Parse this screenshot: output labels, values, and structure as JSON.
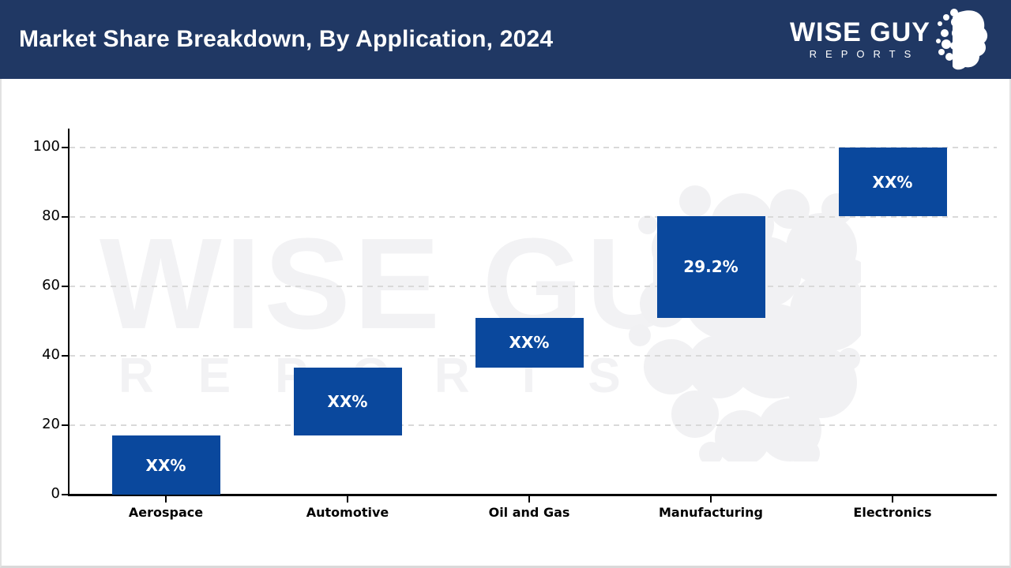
{
  "header": {
    "title": "Market Share Breakdown, By Application, 2024",
    "bg_color": "#203864",
    "logo_line1": "WISE GUY",
    "logo_line2": "REPORTS"
  },
  "watermark": {
    "line1": "WISE GUY",
    "line2": "REPORTS"
  },
  "chart_data": {
    "type": "bar",
    "subtype": "waterfall",
    "title": "Market Share Breakdown, By Application, 2024",
    "categories": [
      "Aerospace",
      "Automotive",
      "Oil and Gas",
      "Manufacturing",
      "Electronics"
    ],
    "segments": [
      {
        "category": "Aerospace",
        "start": 0,
        "end": 17,
        "label": "XX%"
      },
      {
        "category": "Automotive",
        "start": 17,
        "end": 36.6,
        "label": "XX%"
      },
      {
        "category": "Oil and Gas",
        "start": 36.6,
        "end": 51,
        "label": "XX%"
      },
      {
        "category": "Manufacturing",
        "start": 51,
        "end": 80.2,
        "label": "29.2%"
      },
      {
        "category": "Electronics",
        "start": 80.2,
        "end": 100,
        "label": "XX%"
      }
    ],
    "yticks": [
      0,
      20,
      40,
      60,
      80,
      100
    ],
    "ylim": [
      0,
      105
    ],
    "xlabel": "",
    "ylabel": "",
    "grid": true,
    "grid_axis": "y",
    "grid_style": "dashed",
    "bar_color": "#0a489d",
    "bar_label_color": "#ffffff",
    "legend": "none"
  }
}
